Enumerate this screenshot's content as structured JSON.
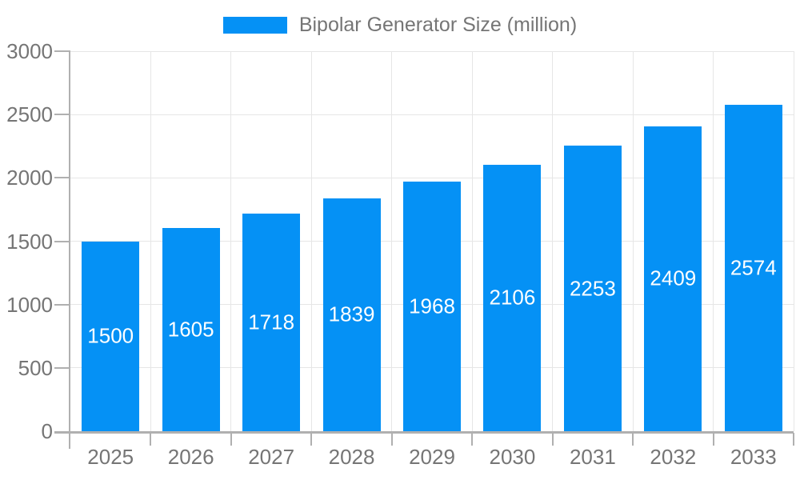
{
  "colors": {
    "bar": "#0591f5",
    "grid": "#e6e6e6",
    "axis": "#b0b0b0",
    "axis_text": "#757575",
    "legend_text": "#757575",
    "bar_label_text": "#ffffff",
    "background": "#ffffff"
  },
  "chart_data": {
    "type": "bar",
    "title": "",
    "legend_label": "Bipolar Generator Size (million)",
    "legend_position": "top",
    "categories": [
      "2025",
      "2026",
      "2027",
      "2028",
      "2029",
      "2030",
      "2031",
      "2032",
      "2033"
    ],
    "series": [
      {
        "name": "Bipolar Generator Size (million)",
        "values": [
          1500,
          1605,
          1718,
          1839,
          1968,
          2106,
          2253,
          2409,
          2574
        ]
      }
    ],
    "values": [
      1500,
      1605,
      1718,
      1839,
      1968,
      2106,
      2253,
      2409,
      2574
    ],
    "bar_value_labels": [
      1500,
      1605,
      1718,
      1839,
      1968,
      2106,
      2253,
      2409,
      2574
    ],
    "xlabel": "",
    "ylabel": "",
    "ylim": [
      0,
      3000
    ],
    "yticks": [
      0,
      500,
      1000,
      1500,
      2000,
      2500,
      3000
    ],
    "grid": true
  }
}
